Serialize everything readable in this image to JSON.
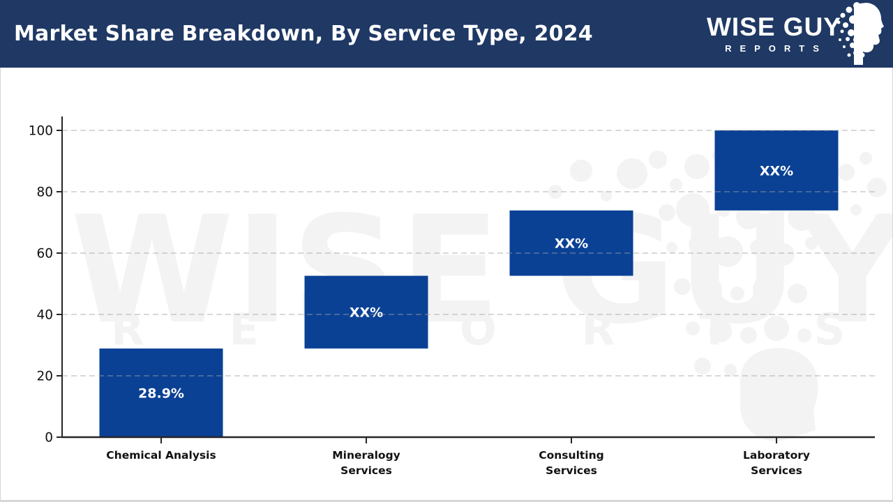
{
  "header": {
    "title": "Market Share Breakdown, By Service Type, 2024",
    "bg_color": "#1f3864",
    "logo": {
      "line1": "WISE GUY",
      "line2": "REPORTS"
    }
  },
  "watermark": {
    "line1": "WISE GUY",
    "line2": "REPORTS"
  },
  "chart_data": {
    "type": "bar",
    "variant": "waterfall-stacked-breakdown",
    "title": "Market Share Breakdown, By Service Type, 2024",
    "categories": [
      "Chemical Analysis",
      "Mineralogy\nServices",
      "Consulting\nServices",
      "Laboratory\nServices"
    ],
    "segments": [
      {
        "category": "Chemical Analysis",
        "start": 0,
        "end": 28.9,
        "label": "28.9%"
      },
      {
        "category": "Mineralogy Services",
        "start": 28.9,
        "end": 52.6,
        "label": "XX%"
      },
      {
        "category": "Consulting Services",
        "start": 52.6,
        "end": 73.9,
        "label": "XX%"
      },
      {
        "category": "Laboratory Services",
        "start": 73.9,
        "end": 100,
        "label": "XX%"
      }
    ],
    "xlabel": "",
    "ylabel": "",
    "ylim": [
      0,
      100
    ],
    "yticks": [
      0,
      20,
      40,
      60,
      80,
      100
    ],
    "grid": "horizontal dashed, drawn over bars",
    "legend": "none",
    "colors": {
      "bar": "#0a4195",
      "bar_label": "#ffffff",
      "axis": "#262626",
      "tick_label": "#111111",
      "gridline": "rgba(160,160,160,0.55)",
      "watermark": "#f3f3f3"
    }
  }
}
